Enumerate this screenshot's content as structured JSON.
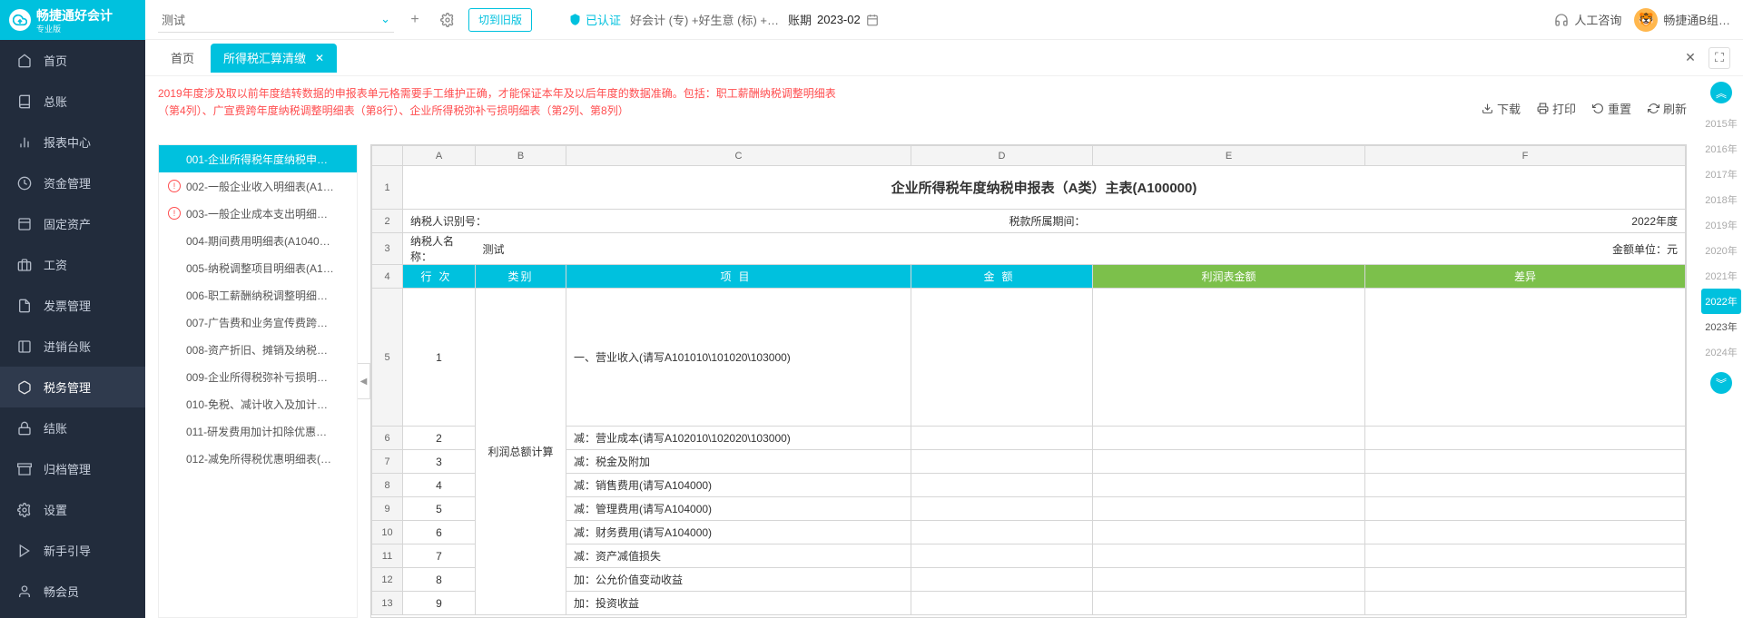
{
  "brand": {
    "name": "畅捷通好会计",
    "sub": "专业版"
  },
  "nav": [
    {
      "label": "首页"
    },
    {
      "label": "总账"
    },
    {
      "label": "报表中心"
    },
    {
      "label": "资金管理"
    },
    {
      "label": "固定资产"
    },
    {
      "label": "工资"
    },
    {
      "label": "发票管理"
    },
    {
      "label": "进销台账"
    },
    {
      "label": "税务管理",
      "active": true
    },
    {
      "label": "结账"
    },
    {
      "label": "归档管理"
    },
    {
      "label": "设置"
    },
    {
      "label": "新手引导"
    },
    {
      "label": "畅会员"
    }
  ],
  "top": {
    "company": "测试",
    "oldVersion": "切到旧版",
    "verified": "已认证",
    "product": "好会计 (专) +好生意 (标) +…",
    "periodLabel": "账期",
    "period": "2023-02",
    "support": "人工咨询",
    "user": "畅捷通B组…"
  },
  "tabs": {
    "home": "首页",
    "active": "所得税汇算清缴"
  },
  "warning": "2019年度涉及取以前年度结转数据的申报表单元格需要手工维护正确，才能保证本年及以后年度的数据准确。包括：职工薪酬纳税调整明细表（第4列）、广宣费跨年度纳税调整明细表（第8行）、企业所得税弥补亏损明细表（第2列、第8列）",
  "actions": {
    "download": "下载",
    "print": "打印",
    "reset": "重置",
    "refresh": "刷新"
  },
  "forms": [
    {
      "label": "001-企业所得税年度纳税申…",
      "active": true,
      "status": ""
    },
    {
      "label": "002-一般企业收入明细表(A1…",
      "status": "err"
    },
    {
      "label": "003-一般企业成本支出明细…",
      "status": "err"
    },
    {
      "label": "004-期间费用明细表(A1040…",
      "status": ""
    },
    {
      "label": "005-纳税调整项目明细表(A1…",
      "status": ""
    },
    {
      "label": "006-职工薪酬纳税调整明细…",
      "status": ""
    },
    {
      "label": "007-广告费和业务宣传费跨…",
      "status": ""
    },
    {
      "label": "008-资产折旧、摊销及纳税…",
      "status": ""
    },
    {
      "label": "009-企业所得税弥补亏损明…",
      "status": ""
    },
    {
      "label": "010-免税、减计收入及加计…",
      "status": ""
    },
    {
      "label": "011-研发费用加计扣除优惠…",
      "status": ""
    },
    {
      "label": "012-减免所得税优惠明细表(…",
      "status": ""
    }
  ],
  "sheet": {
    "cols": [
      "",
      "A",
      "B",
      "C",
      "D",
      "E",
      "F"
    ],
    "title": "企业所得税年度纳税申报表（A类）主表(A100000)",
    "r2": {
      "a": "纳税人识别号：",
      "eLabel": "税款所属期间：",
      "fVal": "2022年度"
    },
    "r3": {
      "a": "纳税人名称：",
      "b": "测试",
      "fVal": "金额单位：元"
    },
    "hdr": {
      "a": "行次",
      "b": "类别",
      "c": "项目",
      "d": "金额",
      "e": "利润表金额",
      "f": "差异"
    },
    "catB": "利润总额计算",
    "rows": [
      {
        "n": "5",
        "a": "1",
        "c": "一、营业收入(请写A101010\\101020\\103000)",
        "tall": true
      },
      {
        "n": "6",
        "a": "2",
        "c": "减：营业成本(请写A102010\\102020\\103000)"
      },
      {
        "n": "7",
        "a": "3",
        "c": "减：税金及附加"
      },
      {
        "n": "8",
        "a": "4",
        "c": "减：销售费用(请写A104000)"
      },
      {
        "n": "9",
        "a": "5",
        "c": "减：管理费用(请写A104000)"
      },
      {
        "n": "10",
        "a": "6",
        "c": "减：财务费用(请写A104000)"
      },
      {
        "n": "11",
        "a": "7",
        "c": "减：资产减值损失"
      },
      {
        "n": "12",
        "a": "8",
        "c": "加：公允价值变动收益"
      },
      {
        "n": "13",
        "a": "9",
        "c": "加：投资收益"
      }
    ]
  },
  "years": [
    "2015年",
    "2016年",
    "2017年",
    "2018年",
    "2019年",
    "2020年",
    "2021年",
    "2022年",
    "2023年",
    "2024年"
  ],
  "activeYear": "2022年",
  "nearYear": "2023年",
  "colors": {
    "primary": "#00c1de",
    "green": "#7cc04b",
    "danger": "#ff4d4f"
  }
}
